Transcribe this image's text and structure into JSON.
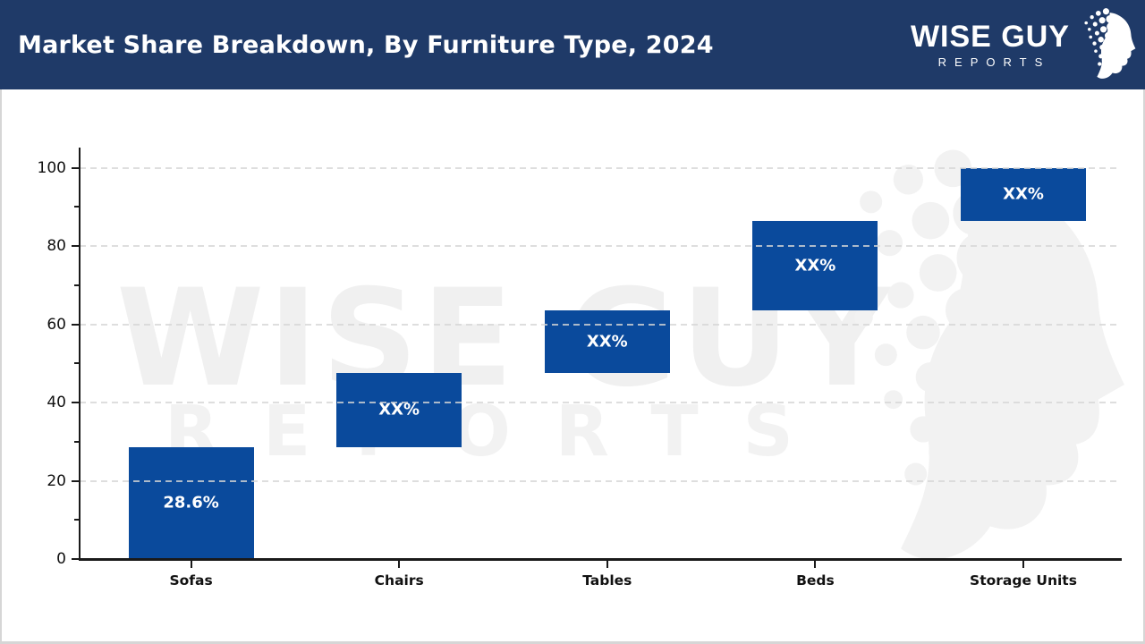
{
  "header": {
    "title": "Market Share Breakdown, By Furniture Type, 2024",
    "bg_color": "#1f3a68",
    "logo": {
      "line1": "WISE GUY",
      "line2": "REPORTS"
    }
  },
  "watermark": {
    "line1": "WISE GUY",
    "line2": "REPORTS"
  },
  "chart_data": {
    "type": "bar",
    "variant": "waterfall",
    "title": "Market Share Breakdown, By Furniture Type, 2024",
    "categories": [
      "Sofas",
      "Chairs",
      "Tables",
      "Beds",
      "Storage Units"
    ],
    "segments": [
      [
        0,
        28.6
      ],
      [
        28.6,
        47.6
      ],
      [
        47.6,
        63.5
      ],
      [
        63.5,
        86.5
      ],
      [
        86.5,
        100
      ]
    ],
    "values": [
      28.6,
      19.0,
      15.9,
      23.0,
      13.5
    ],
    "bar_labels": [
      "28.6%",
      "XX%",
      "XX%",
      "XX%",
      "XX%"
    ],
    "xlabel": "",
    "ylabel": "",
    "ylim": [
      0,
      105
    ],
    "yticks_major": [
      0,
      20,
      40,
      60,
      80,
      100
    ],
    "yticks_minor": [
      10,
      30,
      50,
      70,
      90
    ],
    "grid": "horizontal-dashed",
    "legend": false,
    "bar_color": "#0a4a9c",
    "bar_label_color": "#ffffff",
    "gridline_color": "#d6d6d6",
    "axis_color": "#1a1a1a"
  }
}
